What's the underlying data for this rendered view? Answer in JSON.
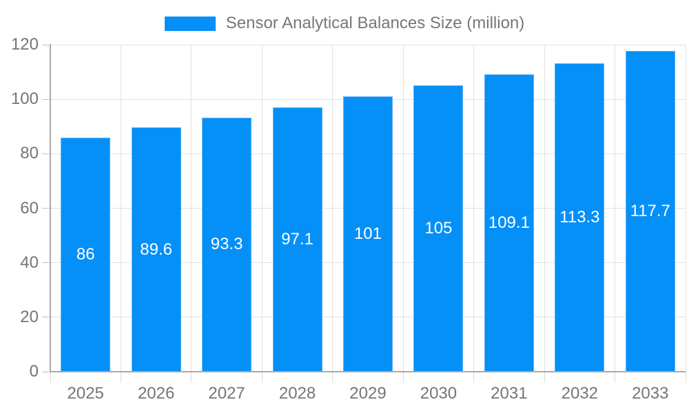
{
  "chart_data": {
    "type": "bar",
    "title": "Sensor Analytical Balances Size (million)",
    "categories": [
      "2025",
      "2026",
      "2027",
      "2028",
      "2029",
      "2030",
      "2031",
      "2032",
      "2033"
    ],
    "values": [
      86,
      89.6,
      93.3,
      97.1,
      101,
      105,
      109.1,
      113.3,
      117.7
    ],
    "value_labels": [
      "86",
      "89.6",
      "93.3",
      "97.1",
      "101",
      "105",
      "109.1",
      "113.3",
      "117.7"
    ],
    "xlabel": "",
    "ylabel": "",
    "ylim": [
      0,
      120
    ],
    "y_ticks": [
      0,
      20,
      40,
      60,
      80,
      100,
      120
    ],
    "grid": true,
    "legend_position": "top",
    "colors": {
      "bar_fill": "#0590f8",
      "bar_edge": "#5eb1f5",
      "bar_label_text": "#ffffff",
      "grid_line": "#e2e2e2",
      "axis_line": "#a9a9a9",
      "y_tick_mark": "#c2c2c2",
      "x_tick_mark": "#dcdcdc",
      "axis_text": "#757575",
      "legend_text": "#777777"
    }
  },
  "legend": {
    "label": "Sensor Analytical Balances Size (million)"
  }
}
